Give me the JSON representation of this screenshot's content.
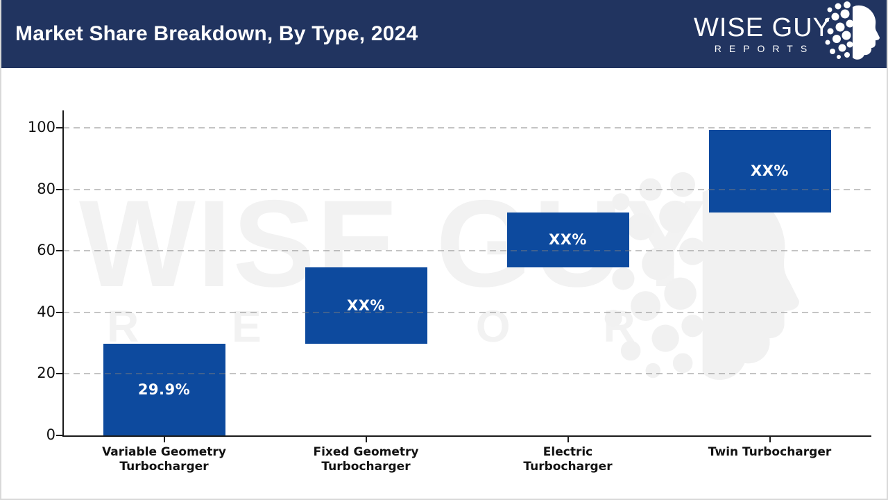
{
  "header": {
    "title": "Market Share Breakdown, By Type, 2024",
    "logo": {
      "line1": "WISE GUY",
      "line2": "REPORTS",
      "icon": "dotted-face-profile"
    }
  },
  "watermark": {
    "line1": "WISE GUY",
    "line2": "R E P O R T S",
    "icon": "dotted-face-profile"
  },
  "colors": {
    "header_bg": "#213460",
    "bar": "#0d4a9e",
    "grid": "#c9c9c9",
    "axis": "#1a1a1a",
    "watermark": "#f2f2f2",
    "title_text": "#ffffff",
    "bar_label_text": "#ffffff"
  },
  "chart_data": {
    "type": "bar",
    "subtype": "floating-waterfall",
    "title": "Market Share Breakdown, By Type, 2024",
    "xlabel": "",
    "ylabel": "",
    "ylim": [
      0,
      100
    ],
    "yticks": [
      0,
      20,
      40,
      60,
      80,
      100
    ],
    "grid": "horizontal-dashed-over-bars",
    "legend": "none",
    "categories": [
      [
        "Variable Geometry",
        "Turbocharger"
      ],
      [
        "Fixed Geometry",
        "Turbocharger"
      ],
      [
        "Electric",
        "Turbocharger"
      ],
      [
        "Twin Turbocharger"
      ]
    ],
    "segments": [
      {
        "category": "Variable Geometry Turbocharger",
        "start": 0,
        "end": 29.9,
        "label": "29.9%"
      },
      {
        "category": "Fixed Geometry Turbocharger",
        "start": 29.9,
        "end": 54.6,
        "label": "XX%"
      },
      {
        "category": "Electric Turbocharger",
        "start": 54.6,
        "end": 72.5,
        "label": "XX%"
      },
      {
        "category": "Twin Turbocharger",
        "start": 72.5,
        "end": 99.4,
        "label": "XX%"
      }
    ]
  }
}
